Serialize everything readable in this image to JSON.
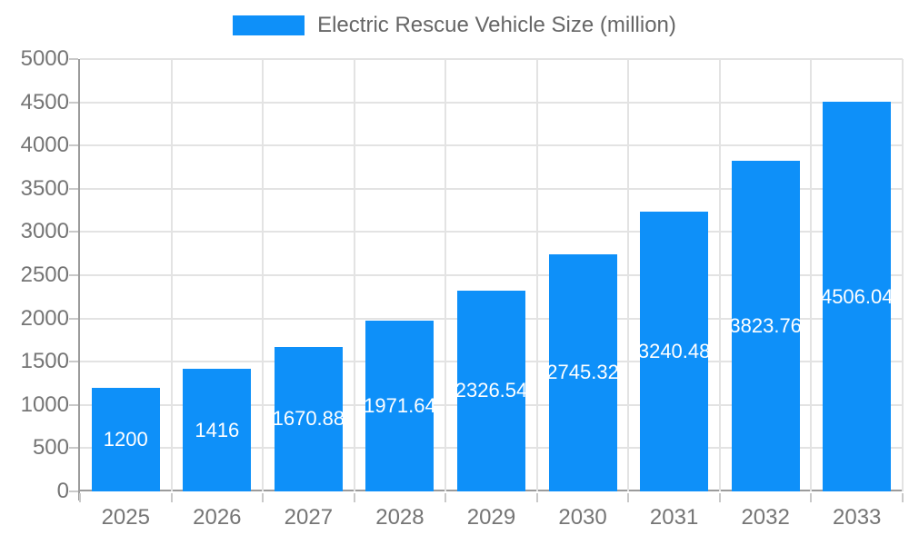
{
  "chart_data": {
    "type": "bar",
    "title": "Electric Rescue Vehicle Size (million)",
    "legend": {
      "label": "Electric Rescue Vehicle Size (million)",
      "position": "top"
    },
    "categories": [
      "2025",
      "2026",
      "2027",
      "2028",
      "2029",
      "2030",
      "2031",
      "2032",
      "2033"
    ],
    "series": [
      {
        "name": "Electric Rescue Vehicle Size (million)",
        "values": [
          1200,
          1416,
          1670.88,
          1971.64,
          2326.54,
          2745.32,
          3240.48,
          3823.76,
          4506.04
        ],
        "value_labels": [
          "1200",
          "1416",
          "1670.88",
          "1971.64",
          "2326.54",
          "2745.32",
          "3240.48",
          "3823.76",
          "4506.04"
        ]
      }
    ],
    "xlabel": "",
    "ylabel": "",
    "ylim": [
      0,
      5000
    ],
    "ytick_step": 500,
    "ytick_labels": [
      "0",
      "500",
      "1000",
      "1500",
      "2000",
      "2500",
      "3000",
      "3500",
      "4000",
      "4500",
      "5000"
    ],
    "grid": true,
    "colors": {
      "bar": "#0e90f9",
      "value_label": "#ffffff",
      "axis_text": "#757575",
      "legend_text": "#666666",
      "gridline": "#e3e3e3",
      "axis_line": "#9b9b9b",
      "tick": "#c9c9c9",
      "background": "#ffffff"
    }
  }
}
